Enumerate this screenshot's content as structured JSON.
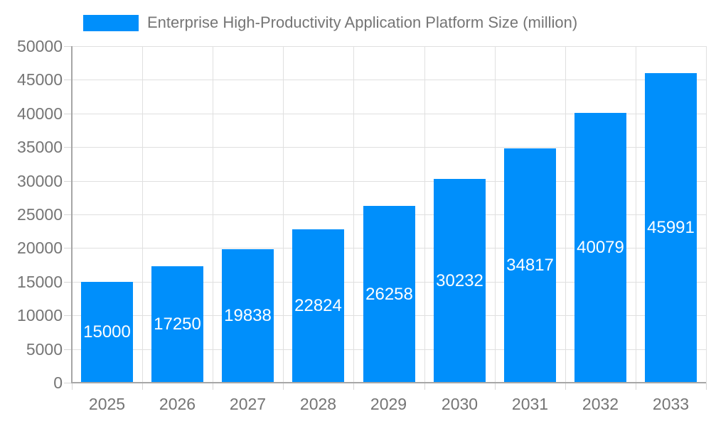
{
  "chart_data": {
    "type": "bar",
    "title": "Enterprise High-Productivity Application Platform Size (million)",
    "legend": {
      "position": "top",
      "entries": [
        "Enterprise High-Productivity Application Platform Size (million)"
      ]
    },
    "categories": [
      "2025",
      "2026",
      "2027",
      "2028",
      "2029",
      "2030",
      "2031",
      "2032",
      "2033"
    ],
    "series": [
      {
        "name": "Enterprise High-Productivity Application Platform Size (million)",
        "values": [
          15000,
          17250,
          19838,
          22824,
          26258,
          30232,
          34817,
          40079,
          45991
        ]
      }
    ],
    "xlabel": "",
    "ylabel": "",
    "ylim": [
      0,
      50000
    ],
    "y_ticks": [
      0,
      5000,
      10000,
      15000,
      20000,
      25000,
      30000,
      35000,
      40000,
      45000,
      50000
    ],
    "grid": true,
    "data_labels": "inside-center-white",
    "colors": {
      "bar": "#008FFB",
      "bar_label_text": "#ffffff",
      "axis_text": "#757575",
      "grid_line": "#e0e0e0",
      "axis_line": "#a6a6a6",
      "background": "#ffffff"
    }
  }
}
